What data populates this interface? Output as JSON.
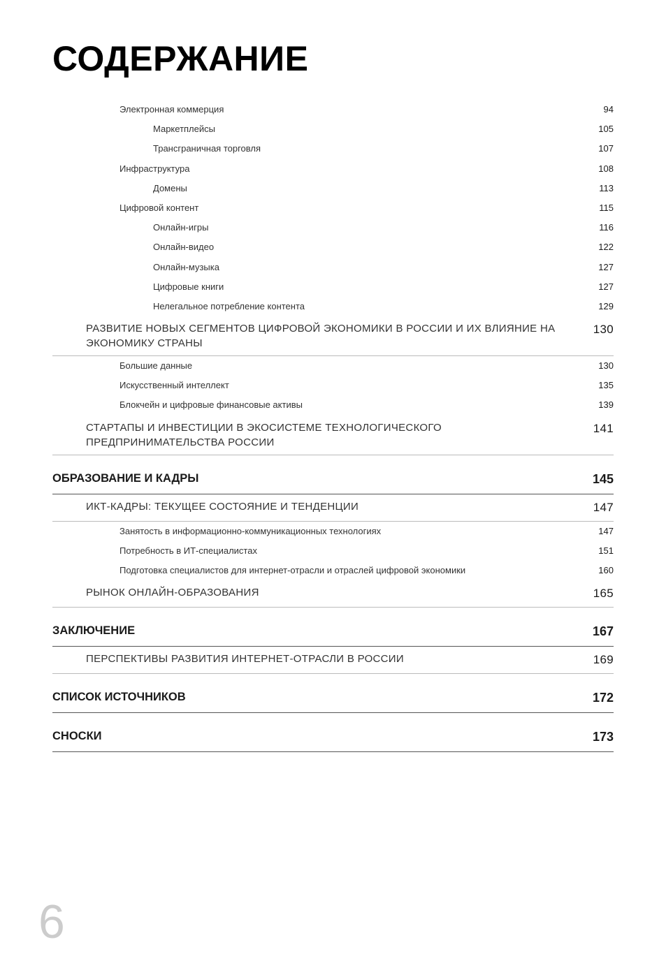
{
  "title": "СОДЕРЖАНИЕ",
  "pageNumber": "6",
  "entries": [
    {
      "level": 2,
      "label": "Электронная коммерция",
      "page": "94"
    },
    {
      "level": 3,
      "label": "Маркетплейсы",
      "page": "105"
    },
    {
      "level": 3,
      "label": "Трансграничная торговля",
      "page": "107"
    },
    {
      "level": 2,
      "label": "Инфраструктура",
      "page": "108"
    },
    {
      "level": 3,
      "label": "Домены",
      "page": "113"
    },
    {
      "level": 2,
      "label": "Цифровой контент",
      "page": "115"
    },
    {
      "level": 3,
      "label": "Онлайн-игры",
      "page": "116"
    },
    {
      "level": 3,
      "label": "Онлайн-видео",
      "page": "122"
    },
    {
      "level": 3,
      "label": "Онлайн-музыка",
      "page": "127"
    },
    {
      "level": 3,
      "label": "Цифровые книги",
      "page": "127"
    },
    {
      "level": 3,
      "label": "Нелегальное потребление контента",
      "page": "129"
    },
    {
      "level": 1,
      "label": "РАЗВИТИЕ НОВЫХ СЕГМЕНТОВ ЦИФРОВОЙ ЭКОНОМИКИ В РОССИИ И ИХ ВЛИЯНИЕ НА ЭКОНОМИКУ СТРАНЫ",
      "page": "130"
    },
    {
      "level": 2,
      "label": "Большие данные",
      "page": "130"
    },
    {
      "level": 2,
      "label": "Искусственный интеллект",
      "page": "135"
    },
    {
      "level": 2,
      "label": "Блокчейн и цифровые финансовые активы",
      "page": "139"
    },
    {
      "level": 1,
      "label": "СТАРТАПЫ И ИНВЕСТИЦИИ В ЭКОСИСТЕМЕ ТЕХНОЛОГИЧЕСКОГО ПРЕДПРИНИМАТЕЛЬСТВА РОССИИ",
      "page": "141"
    },
    {
      "level": 0,
      "label": "ОБРАЗОВАНИЕ И КАДРЫ",
      "page": "145"
    },
    {
      "level": 1,
      "label": "ИКТ-КАДРЫ: ТЕКУЩЕЕ СОСТОЯНИЕ И ТЕНДЕНЦИИ",
      "page": "147"
    },
    {
      "level": 2,
      "label": "Занятость в информационно-коммуникационных технологиях",
      "page": "147"
    },
    {
      "level": 2,
      "label": "Потребность в ИТ-специалистах",
      "page": "151"
    },
    {
      "level": 2,
      "label": "Подготовка специалистов для интернет-отрасли и отраслей цифровой экономики",
      "page": "160"
    },
    {
      "level": 1,
      "label": "РЫНОК ОНЛАЙН-ОБРАЗОВАНИЯ",
      "page": "165"
    },
    {
      "level": 0,
      "label": "ЗАКЛЮЧЕНИЕ",
      "page": "167"
    },
    {
      "level": 1,
      "label": "ПЕРСПЕКТИВЫ РАЗВИТИЯ ИНТЕРНЕТ-ОТРАСЛИ В РОССИИ",
      "page": "169"
    },
    {
      "level": 0,
      "label": "СПИСОК ИСТОЧНИКОВ",
      "page": "172"
    },
    {
      "level": 0,
      "label": "СНОСКИ",
      "page": "173"
    }
  ]
}
